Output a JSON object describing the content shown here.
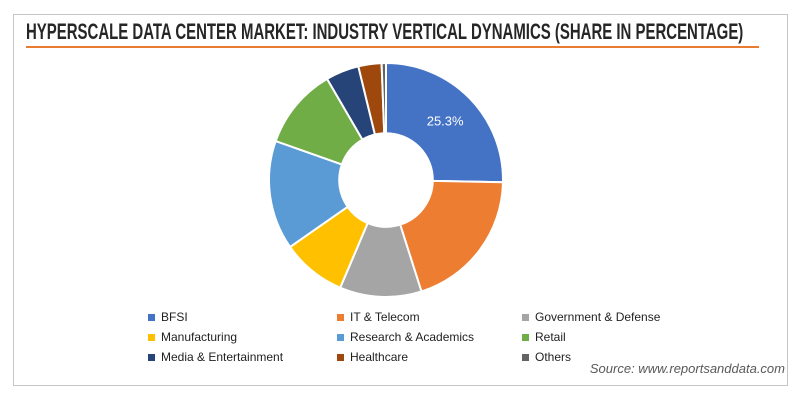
{
  "title": {
    "text": "HYPERSCALE DATA CENTER MARKET: INDUSTRY VERTICAL DYNAMICS (SHARE IN PERCENTAGE)"
  },
  "source_note": "Source: www.reportsanddata.com",
  "style": {
    "accent_underline_color": "#E87D2F",
    "frame_border_color": "#C6C6C6",
    "data_label_color": "#FFFFFF"
  },
  "chart_data": {
    "type": "pie",
    "subtype": "donut",
    "title": "HYPERSCALE DATA CENTER MARKET: INDUSTRY VERTICAL DYNAMICS (SHARE IN PERCENTAGE)",
    "legend_position": "bottom",
    "start_angle_deg": 0,
    "direction": "clockwise",
    "inner_radius_ratio": 0.4,
    "categories": [
      "BFSI",
      "IT & Telecom",
      "Government & Defense",
      "Manufacturing",
      "Research & Academics",
      "Retail",
      "Media & Entertainment",
      "Healthcare",
      "Others"
    ],
    "values": [
      25.3,
      19.8,
      11.3,
      8.9,
      15.1,
      11.2,
      4.6,
      3.2,
      0.6
    ],
    "colors": [
      "#4472C4",
      "#ED7D31",
      "#A5A5A5",
      "#FFC000",
      "#5B9BD5",
      "#70AD47",
      "#264478",
      "#9E480E",
      "#636363"
    ],
    "data_labels": [
      "25.3%",
      null,
      null,
      null,
      null,
      null,
      null,
      null,
      null
    ]
  }
}
